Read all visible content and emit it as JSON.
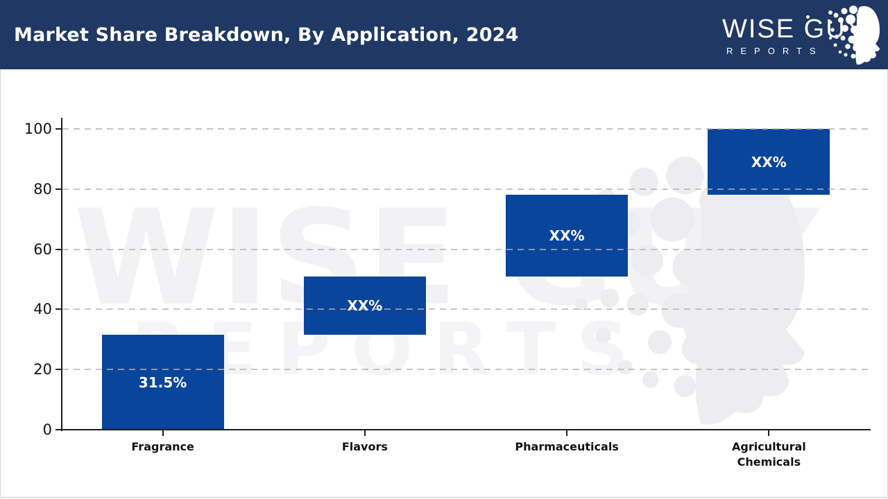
{
  "header": {
    "title": "Market Share Breakdown, By Application, 2024",
    "logo": {
      "line1": "WISE GUY",
      "line2": "REPORTS"
    }
  },
  "watermark": {
    "line1": "WISE GUY",
    "line2": "REPORTS"
  },
  "chart_data": {
    "type": "bar",
    "subtype": "waterfall",
    "title": "Market Share Breakdown, By Application, 2024",
    "categories": [
      "Fragrance",
      "Flavors",
      "Pharmaceuticals",
      "Agricultural Chemicals"
    ],
    "segments": [
      {
        "category": "Fragrance",
        "start": 0,
        "end": 31.5,
        "label": "31.5%"
      },
      {
        "category": "Flavors",
        "start": 31.5,
        "end": 51,
        "label": "XX%"
      },
      {
        "category": "Pharmaceuticals",
        "start": 51,
        "end": 78,
        "label": "XX%"
      },
      {
        "category": "Agricultural Chemicals",
        "start": 78,
        "end": 100,
        "label": "XX%"
      }
    ],
    "ylim": [
      0,
      100
    ],
    "yticks": [
      0,
      20,
      40,
      60,
      80,
      100
    ],
    "xlabel": "",
    "ylabel": "",
    "grid": "horizontal-dashed",
    "legend": "none",
    "bar_color": "#0a459c",
    "label_color": "#ffffff"
  },
  "colors": {
    "header_bg": "#1f3864",
    "bar": "#0a459c",
    "axis": "#1c1c1c",
    "grid": "#b2b2b2",
    "watermark": "#f2f2f5",
    "card_border": "#d8d8d8"
  }
}
